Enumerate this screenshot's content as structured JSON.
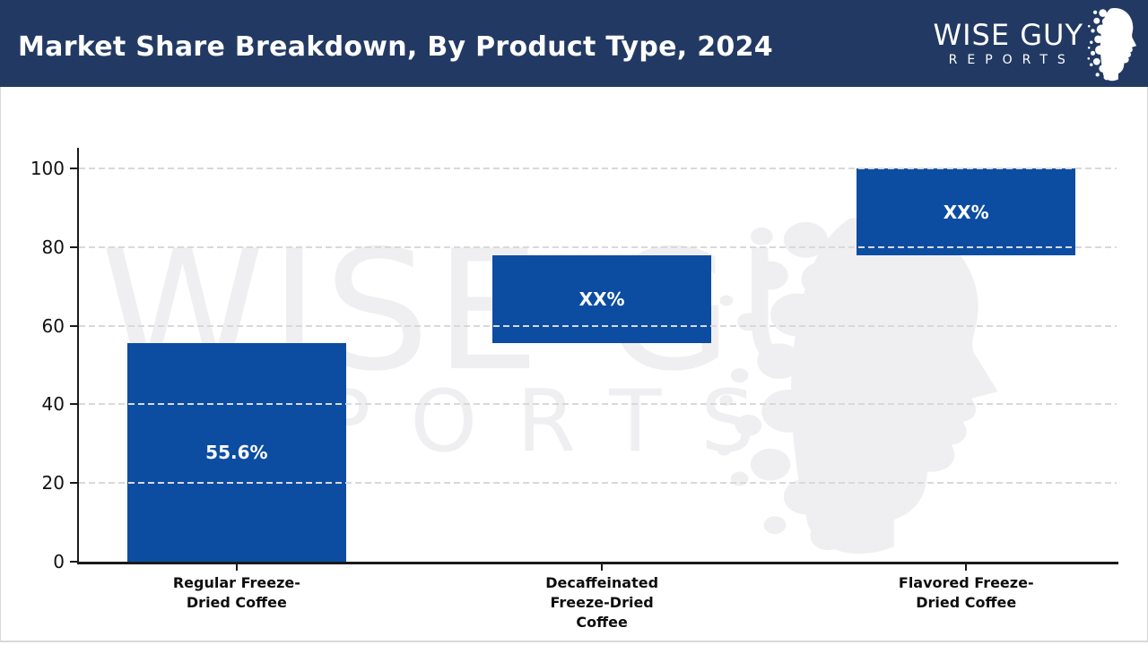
{
  "header": {
    "title": "Market Share Breakdown, By Product Type, 2024",
    "bg_color": "#223a63",
    "logo": {
      "wordmark": "WISE GUY",
      "subtext": "REPORTS"
    }
  },
  "watermark": {
    "wordmark": "WISE GUY",
    "subtext": "REPORTS"
  },
  "chart_data": {
    "type": "bar",
    "subtype": "floating-segment (waterfall-style) market share bars",
    "title": "Market Share Breakdown, By Product Type, 2024",
    "categories": [
      [
        "Regular Freeze-",
        "Dried Coffee"
      ],
      [
        "Decaffeinated",
        "Freeze-Dried",
        "Coffee"
      ],
      [
        "Flavored Freeze-",
        "Dried Coffee"
      ]
    ],
    "bars": [
      {
        "value_label": "55.6%",
        "start": 0,
        "end": 55.6
      },
      {
        "value_label": "XX%",
        "start": 55.6,
        "end": 77.8
      },
      {
        "value_label": "XX%",
        "start": 77.8,
        "end": 100
      }
    ],
    "yticks": [
      0,
      20,
      40,
      60,
      80,
      100
    ],
    "ylim": [
      0,
      105.2
    ],
    "xlabel": "",
    "ylabel": "",
    "legend": null,
    "grid": {
      "axis": "y",
      "style": "dashed",
      "color": "#d9d9d9",
      "above_bars": true
    },
    "colors": {
      "bar": "#0c4da2",
      "bar_label": "#ffffff",
      "axis": "#1a1a1a",
      "tick_label": "#111111"
    },
    "layout": {
      "bar_center_fracs": [
        0.152,
        0.504,
        0.855
      ],
      "bar_width_frac": 0.211
    }
  }
}
